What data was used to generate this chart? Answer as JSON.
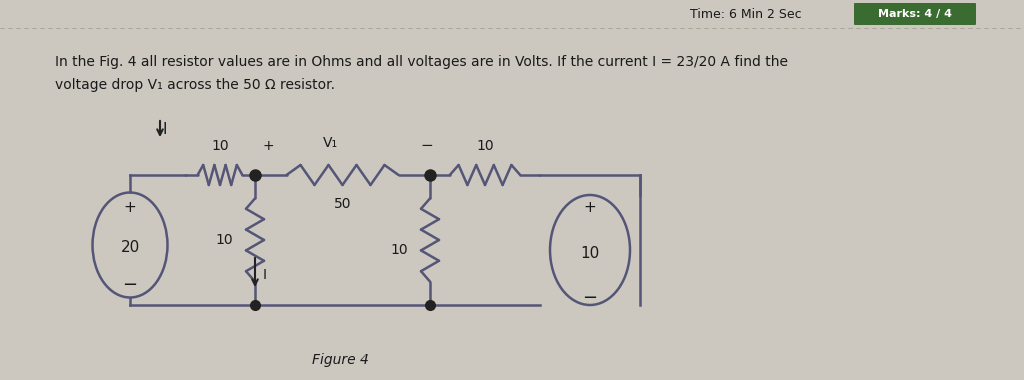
{
  "bg_color": "#ccc8c0",
  "time_text": "Time: 6 Min 2 Sec",
  "marks_text": "Marks: 4 / 4",
  "marks_bg": "#3a6b30",
  "problem_line1": "In the Fig. 4 all resistor values are in Ohms and all voltages are in Volts. If the current I = 23/20 A find the",
  "problem_line2": "voltage drop V₁ across the 50 Ω resistor.",
  "figure_label": "Figure 4",
  "font_color": "#1a1a1a",
  "wire_color": "#555577",
  "dark_color": "#222222"
}
